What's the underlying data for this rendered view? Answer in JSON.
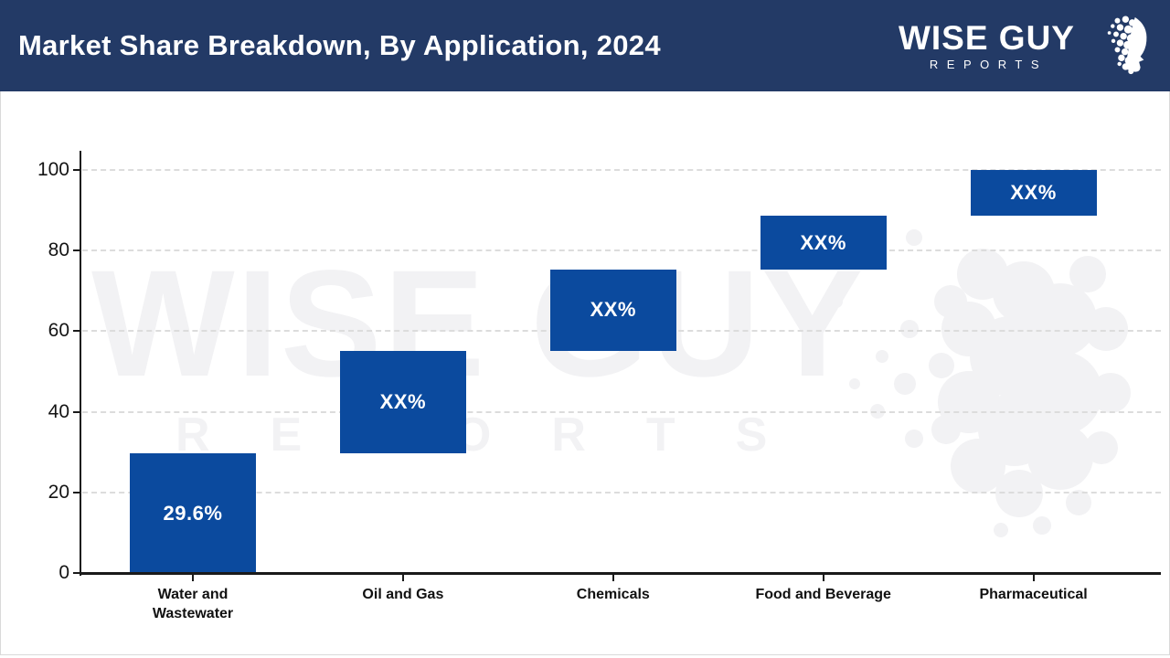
{
  "header": {
    "title": "Market Share Breakdown, By Application, 2024",
    "logo": {
      "line1": "WISE GUY",
      "line2": "REPORTS"
    }
  },
  "watermark": {
    "line1": "WISE GUY",
    "line2": "REPORTS"
  },
  "chart_data": {
    "type": "bar",
    "variant": "waterfall",
    "title": "Market Share Breakdown, By Application, 2024",
    "categories": [
      "Water and\nWastewater",
      "Oil and Gas",
      "Chemicals",
      "Food and Beverage",
      "Pharmaceutical"
    ],
    "bars": [
      {
        "category": "Water and Wastewater",
        "start": 0,
        "end": 29.6,
        "label": "29.6%"
      },
      {
        "category": "Oil and Gas",
        "start": 29.6,
        "end": 55.2,
        "label": "XX%"
      },
      {
        "category": "Chemicals",
        "start": 55.2,
        "end": 75.2,
        "label": "XX%"
      },
      {
        "category": "Food and Beverage",
        "start": 75.2,
        "end": 88.6,
        "label": "XX%"
      },
      {
        "category": "Pharmaceutical",
        "start": 88.6,
        "end": 100,
        "label": "XX%"
      }
    ],
    "y_ticks": [
      0,
      20,
      40,
      60,
      80,
      100
    ],
    "ylim": [
      0,
      104
    ],
    "xlabel": "",
    "ylabel": "",
    "grid": "horizontal-dashed",
    "legend": "none",
    "colors": {
      "bar": "#0b4a9e",
      "bar_label": "#ffffff",
      "axis": "#1a1a1a",
      "gridline": "#dcdcdc",
      "header_background": "#233a66",
      "watermark": "#f2f2f4"
    }
  }
}
